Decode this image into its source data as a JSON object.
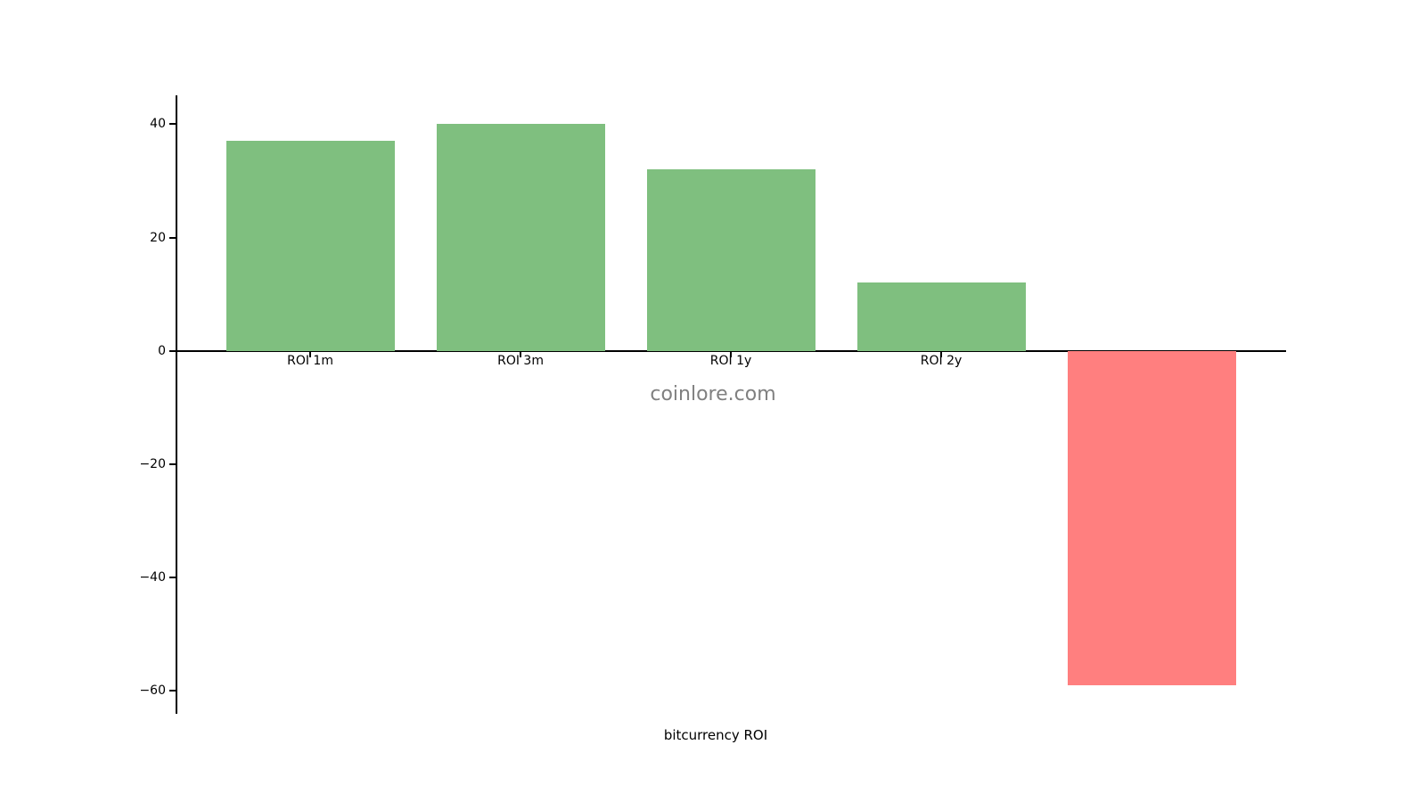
{
  "page": {
    "background": "#ffffff"
  },
  "chart_data": {
    "type": "bar",
    "title": "",
    "categories": [
      "ROI 1m",
      "ROI 3m",
      "ROI 1y",
      "ROI 2y",
      ""
    ],
    "values": [
      37,
      40,
      32,
      12,
      -59
    ],
    "bar_colors": [
      "#7fbf7f",
      "#7fbf7f",
      "#7fbf7f",
      "#7fbf7f",
      "#ff7f7f"
    ],
    "xlabel": "bitcurrency ROI",
    "ylabel": "",
    "yticks": [
      40,
      20,
      0,
      -20,
      -40,
      -60
    ],
    "ylim": [
      -63.9,
      44.9
    ],
    "grid": false,
    "legend_position": "none",
    "watermark": "coinlore.com",
    "colors": {
      "positive_bar": "#7fbf7f",
      "negative_bar": "#ff7f7f",
      "watermark_text": "#808080",
      "axis": "#000000",
      "tick_text": "#000000"
    }
  }
}
